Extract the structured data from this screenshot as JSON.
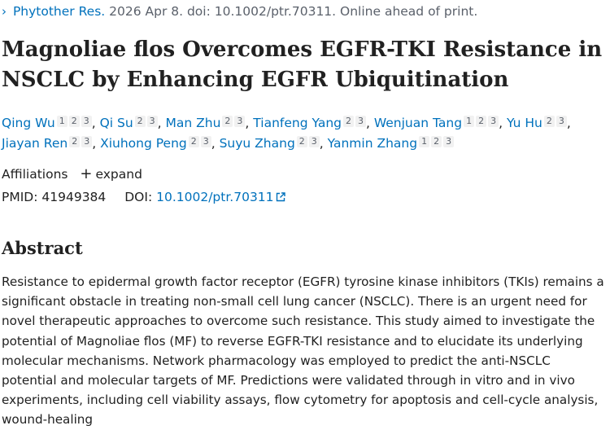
{
  "citation": {
    "chevron": "›",
    "journal": "Phytother Res.",
    "rest": " 2026 Apr 8. doi: 10.1002/ptr.70311. Online ahead of print."
  },
  "article": {
    "title": "Magnoliae flos Overcomes EGFR-TKI Resistance in NSCLC by Enhancing EGFR Ubiquitination"
  },
  "authors": [
    {
      "name": "Qing Wu",
      "affils": [
        "1",
        "2",
        "3"
      ]
    },
    {
      "name": "Qi Su",
      "affils": [
        "2",
        "3"
      ]
    },
    {
      "name": "Man Zhu",
      "affils": [
        "2",
        "3"
      ]
    },
    {
      "name": "Tianfeng Yang",
      "affils": [
        "2",
        "3"
      ]
    },
    {
      "name": "Wenjuan Tang",
      "affils": [
        "1",
        "2",
        "3"
      ]
    },
    {
      "name": "Yu Hu",
      "affils": [
        "2",
        "3"
      ]
    },
    {
      "name": "Jiayan Ren",
      "affils": [
        "2",
        "3"
      ]
    },
    {
      "name": "Xiuhong Peng",
      "affils": [
        "2",
        "3"
      ]
    },
    {
      "name": "Suyu Zhang",
      "affils": [
        "2",
        "3"
      ]
    },
    {
      "name": "Yanmin Zhang",
      "affils": [
        "1",
        "2",
        "3"
      ]
    }
  ],
  "affiliations": {
    "label": "Affiliations",
    "expand_label": "expand"
  },
  "identifiers": {
    "pmid_label": "PMID:",
    "pmid": "41949384",
    "doi_label": "DOI:",
    "doi": "10.1002/ptr.70311"
  },
  "abstract": {
    "heading": "Abstract",
    "text": "Resistance to epidermal growth factor receptor (EGFR) tyrosine kinase inhibitors (TKIs) remains a significant obstacle in treating non-small cell lung cancer (NSCLC). There is an urgent need for novel therapeutic approaches to overcome such resistance. This study aimed to investigate the potential of Magnoliae flos (MF) to reverse EGFR-TKI resistance and to elucidate its underlying molecular mechanisms. Network pharmacology was employed to predict the anti-NSCLC potential and molecular targets of MF. Predictions were validated through in vitro and in vivo experiments, including cell viability assays, flow cytometry for apoptosis and cell-cycle analysis, wound-healing"
  },
  "colors": {
    "link": "#0071bc",
    "text": "#212121",
    "muted": "#5b616b",
    "badge_bg": "#f1f1f1"
  },
  "icons": {
    "external_link": "external-link-icon",
    "expand": "plus-icon",
    "chevron": "chevron-right-icon"
  }
}
